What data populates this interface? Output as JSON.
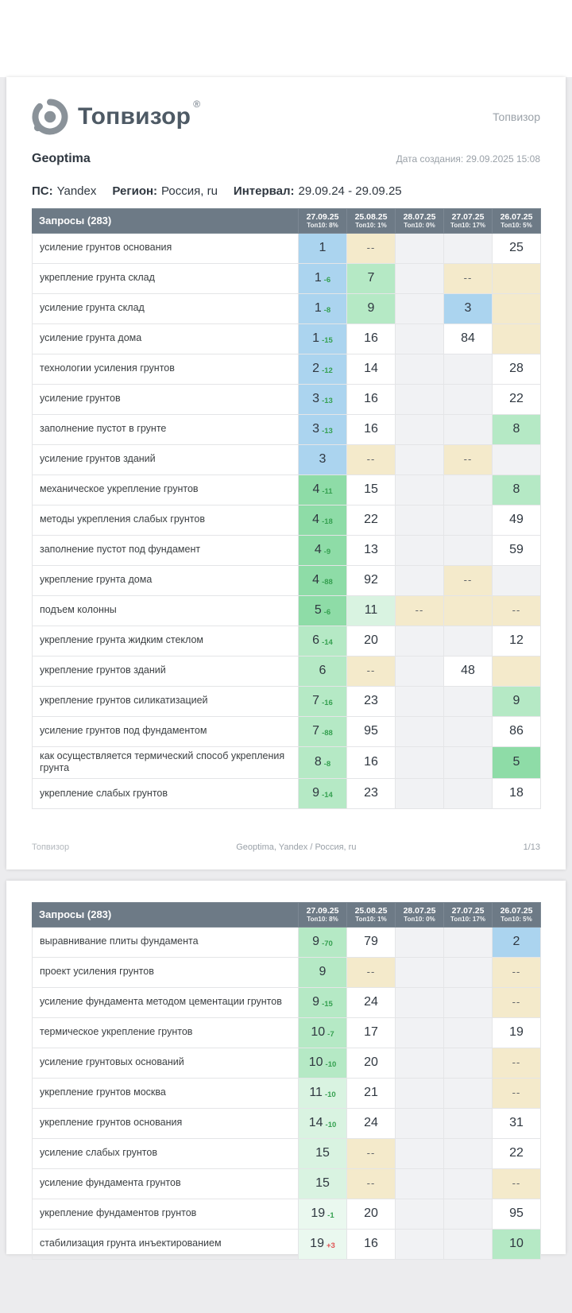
{
  "app": {
    "brand": "Топвизор",
    "brand_reg": "®",
    "header_right": "Топвизор",
    "project": "Geoptima",
    "created": "Дата создания: 29.09.2025 15:08",
    "meta": {
      "ps_label": "ПС:",
      "ps_value": "Yandex",
      "region_label": "Регион:",
      "region_value": "Россия, ru",
      "interval_label": "Интервал:",
      "interval_value": "29.09.24 - 29.09.25"
    }
  },
  "colors": {
    "header_bg": "#6d7a86",
    "blue": "#abd4ef",
    "g1": "#8edca7",
    "g2": "#b5e9c5",
    "g3": "#d9f3e1",
    "g4": "#eaf8ef",
    "beige": "#f4eacb",
    "gray": "#f1f2f4",
    "white": "#ffffff",
    "delta_green": "#35a050",
    "delta_red": "#e05252"
  },
  "table": {
    "queries_header": "Запросы (283)",
    "columns": [
      {
        "date": "27.09.25",
        "top10": "Топ10: 8%"
      },
      {
        "date": "25.08.25",
        "top10": "Топ10: 1%"
      },
      {
        "date": "28.07.25",
        "top10": "Топ10: 0%"
      },
      {
        "date": "27.07.25",
        "top10": "Топ10: 17%"
      },
      {
        "date": "26.07.25",
        "top10": "Топ10: 5%"
      }
    ]
  },
  "pages": [
    {
      "footer": {
        "left": "Топвизор",
        "center": "Geoptima, Yandex / Россия, ru",
        "right": "1/13"
      },
      "rows": [
        {
          "query": "усиление грунтов основания",
          "cells": [
            {
              "v": "1",
              "bg": "blue"
            },
            {
              "v": "--",
              "bg": "beige"
            },
            {
              "bg": "gray"
            },
            {
              "bg": "gray"
            },
            {
              "v": "25",
              "bg": "white"
            }
          ]
        },
        {
          "query": "укрепление грунта склад",
          "cells": [
            {
              "v": "1",
              "d": "-6",
              "bg": "blue"
            },
            {
              "v": "7",
              "bg": "g2"
            },
            {
              "bg": "gray"
            },
            {
              "v": "--",
              "bg": "beige"
            },
            {
              "bg": "beige"
            }
          ]
        },
        {
          "query": "усиление грунта склад",
          "cells": [
            {
              "v": "1",
              "d": "-8",
              "bg": "blue"
            },
            {
              "v": "9",
              "bg": "g2"
            },
            {
              "bg": "gray"
            },
            {
              "v": "3",
              "bg": "blue"
            },
            {
              "bg": "beige"
            }
          ]
        },
        {
          "query": "усиление грунта дома",
          "cells": [
            {
              "v": "1",
              "d": "-15",
              "bg": "blue"
            },
            {
              "v": "16",
              "bg": "white"
            },
            {
              "bg": "gray"
            },
            {
              "v": "84",
              "bg": "white"
            },
            {
              "bg": "beige"
            }
          ]
        },
        {
          "query": "технологии усиления грунтов",
          "cells": [
            {
              "v": "2",
              "d": "-12",
              "bg": "blue"
            },
            {
              "v": "14",
              "bg": "white"
            },
            {
              "bg": "gray"
            },
            {
              "bg": "gray"
            },
            {
              "v": "28",
              "bg": "white"
            }
          ]
        },
        {
          "query": "усиление грунтов",
          "cells": [
            {
              "v": "3",
              "d": "-13",
              "bg": "blue"
            },
            {
              "v": "16",
              "bg": "white"
            },
            {
              "bg": "gray"
            },
            {
              "bg": "gray"
            },
            {
              "v": "22",
              "bg": "white"
            }
          ]
        },
        {
          "query": "заполнение пустот в грунте",
          "cells": [
            {
              "v": "3",
              "d": "-13",
              "bg": "blue"
            },
            {
              "v": "16",
              "bg": "white"
            },
            {
              "bg": "gray"
            },
            {
              "bg": "gray"
            },
            {
              "v": "8",
              "bg": "g2"
            }
          ]
        },
        {
          "query": "усиление грунтов зданий",
          "cells": [
            {
              "v": "3",
              "bg": "blue"
            },
            {
              "v": "--",
              "bg": "beige"
            },
            {
              "bg": "gray"
            },
            {
              "v": "--",
              "bg": "beige"
            },
            {
              "bg": "gray"
            }
          ]
        },
        {
          "query": "механическое укрепление грунтов",
          "cells": [
            {
              "v": "4",
              "d": "-11",
              "bg": "g1"
            },
            {
              "v": "15",
              "bg": "white"
            },
            {
              "bg": "gray"
            },
            {
              "bg": "gray"
            },
            {
              "v": "8",
              "bg": "g2"
            }
          ]
        },
        {
          "query": "методы укрепления слабых грунтов",
          "cells": [
            {
              "v": "4",
              "d": "-18",
              "bg": "g1"
            },
            {
              "v": "22",
              "bg": "white"
            },
            {
              "bg": "gray"
            },
            {
              "bg": "gray"
            },
            {
              "v": "49",
              "bg": "white"
            }
          ]
        },
        {
          "query": "заполнение пустот под фундамент",
          "cells": [
            {
              "v": "4",
              "d": "-9",
              "bg": "g1"
            },
            {
              "v": "13",
              "bg": "white"
            },
            {
              "bg": "gray"
            },
            {
              "bg": "gray"
            },
            {
              "v": "59",
              "bg": "white"
            }
          ]
        },
        {
          "query": "укрепление грунта дома",
          "cells": [
            {
              "v": "4",
              "d": "-88",
              "bg": "g1"
            },
            {
              "v": "92",
              "bg": "white"
            },
            {
              "bg": "gray"
            },
            {
              "v": "--",
              "bg": "beige"
            },
            {
              "bg": "gray"
            }
          ]
        },
        {
          "query": "подъем колонны",
          "cells": [
            {
              "v": "5",
              "d": "-6",
              "bg": "g1"
            },
            {
              "v": "11",
              "bg": "g3"
            },
            {
              "v": "--",
              "bg": "beige"
            },
            {
              "bg": "beige"
            },
            {
              "v": "--",
              "bg": "beige"
            }
          ]
        },
        {
          "query": "укрепление грунта жидким стеклом",
          "cells": [
            {
              "v": "6",
              "d": "-14",
              "bg": "g2"
            },
            {
              "v": "20",
              "bg": "white"
            },
            {
              "bg": "gray"
            },
            {
              "bg": "gray"
            },
            {
              "v": "12",
              "bg": "white"
            }
          ]
        },
        {
          "query": "укрепление грунтов зданий",
          "cells": [
            {
              "v": "6",
              "bg": "g2"
            },
            {
              "v": "--",
              "bg": "beige"
            },
            {
              "bg": "gray"
            },
            {
              "v": "48",
              "bg": "white"
            },
            {
              "bg": "beige"
            }
          ]
        },
        {
          "query": "укрепление грунтов силикатизацией",
          "cells": [
            {
              "v": "7",
              "d": "-16",
              "bg": "g2"
            },
            {
              "v": "23",
              "bg": "white"
            },
            {
              "bg": "gray"
            },
            {
              "bg": "gray"
            },
            {
              "v": "9",
              "bg": "g2"
            }
          ]
        },
        {
          "query": "усиление грунтов под фундаментом",
          "cells": [
            {
              "v": "7",
              "d": "-88",
              "bg": "g2"
            },
            {
              "v": "95",
              "bg": "white"
            },
            {
              "bg": "gray"
            },
            {
              "bg": "gray"
            },
            {
              "v": "86",
              "bg": "white"
            }
          ]
        },
        {
          "query": "как осуществляется термический способ укрепления грунта",
          "cells": [
            {
              "v": "8",
              "d": "-8",
              "bg": "g2"
            },
            {
              "v": "16",
              "bg": "white"
            },
            {
              "bg": "gray"
            },
            {
              "bg": "gray"
            },
            {
              "v": "5",
              "bg": "g1"
            }
          ]
        },
        {
          "query": "укрепление слабых грунтов",
          "cells": [
            {
              "v": "9",
              "d": "-14",
              "bg": "g2"
            },
            {
              "v": "23",
              "bg": "white"
            },
            {
              "bg": "gray"
            },
            {
              "bg": "gray"
            },
            {
              "v": "18",
              "bg": "white"
            }
          ]
        }
      ]
    },
    {
      "rows": [
        {
          "query": "выравнивание плиты фундамента",
          "cells": [
            {
              "v": "9",
              "d": "-70",
              "bg": "g2"
            },
            {
              "v": "79",
              "bg": "white"
            },
            {
              "bg": "gray"
            },
            {
              "bg": "gray"
            },
            {
              "v": "2",
              "bg": "blue"
            }
          ]
        },
        {
          "query": "проект усиления грунтов",
          "cells": [
            {
              "v": "9",
              "bg": "g2"
            },
            {
              "v": "--",
              "bg": "beige"
            },
            {
              "bg": "gray"
            },
            {
              "bg": "gray"
            },
            {
              "v": "--",
              "bg": "beige"
            }
          ]
        },
        {
          "query": "усиление фундамента методом цементации грунтов",
          "cells": [
            {
              "v": "9",
              "d": "-15",
              "bg": "g2"
            },
            {
              "v": "24",
              "bg": "white"
            },
            {
              "bg": "gray"
            },
            {
              "bg": "gray"
            },
            {
              "v": "--",
              "bg": "beige"
            }
          ]
        },
        {
          "query": "термическое укрепление грунтов",
          "cells": [
            {
              "v": "10",
              "d": "-7",
              "bg": "g2"
            },
            {
              "v": "17",
              "bg": "white"
            },
            {
              "bg": "gray"
            },
            {
              "bg": "gray"
            },
            {
              "v": "19",
              "bg": "white"
            }
          ]
        },
        {
          "query": "усиление грунтовых оснований",
          "cells": [
            {
              "v": "10",
              "d": "-10",
              "bg": "g2"
            },
            {
              "v": "20",
              "bg": "white"
            },
            {
              "bg": "gray"
            },
            {
              "bg": "gray"
            },
            {
              "v": "--",
              "bg": "beige"
            }
          ]
        },
        {
          "query": "укрепление грунтов москва",
          "cells": [
            {
              "v": "11",
              "d": "-10",
              "bg": "g3"
            },
            {
              "v": "21",
              "bg": "white"
            },
            {
              "bg": "gray"
            },
            {
              "bg": "gray"
            },
            {
              "v": "--",
              "bg": "beige"
            }
          ]
        },
        {
          "query": "укрепление грунтов основания",
          "cells": [
            {
              "v": "14",
              "d": "-10",
              "bg": "g3"
            },
            {
              "v": "24",
              "bg": "white"
            },
            {
              "bg": "gray"
            },
            {
              "bg": "gray"
            },
            {
              "v": "31",
              "bg": "white"
            }
          ]
        },
        {
          "query": "усиление слабых грунтов",
          "cells": [
            {
              "v": "15",
              "bg": "g3"
            },
            {
              "v": "--",
              "bg": "beige"
            },
            {
              "bg": "gray"
            },
            {
              "bg": "gray"
            },
            {
              "v": "22",
              "bg": "white"
            }
          ]
        },
        {
          "query": "усиление фундамента грунтов",
          "cells": [
            {
              "v": "15",
              "bg": "g3"
            },
            {
              "v": "--",
              "bg": "beige"
            },
            {
              "bg": "gray"
            },
            {
              "bg": "gray"
            },
            {
              "v": "--",
              "bg": "beige"
            }
          ]
        },
        {
          "query": "укрепление фундаментов грунтов",
          "cells": [
            {
              "v": "19",
              "d": "-1",
              "bg": "g4"
            },
            {
              "v": "20",
              "bg": "white"
            },
            {
              "bg": "gray"
            },
            {
              "bg": "gray"
            },
            {
              "v": "95",
              "bg": "white"
            }
          ]
        },
        {
          "query": "стабилизация грунта инъектированием",
          "cells": [
            {
              "v": "19",
              "d": "+3",
              "dred": true,
              "bg": "g4"
            },
            {
              "v": "16",
              "bg": "white"
            },
            {
              "bg": "gray"
            },
            {
              "bg": "gray"
            },
            {
              "v": "10",
              "bg": "g2"
            }
          ]
        }
      ]
    }
  ]
}
